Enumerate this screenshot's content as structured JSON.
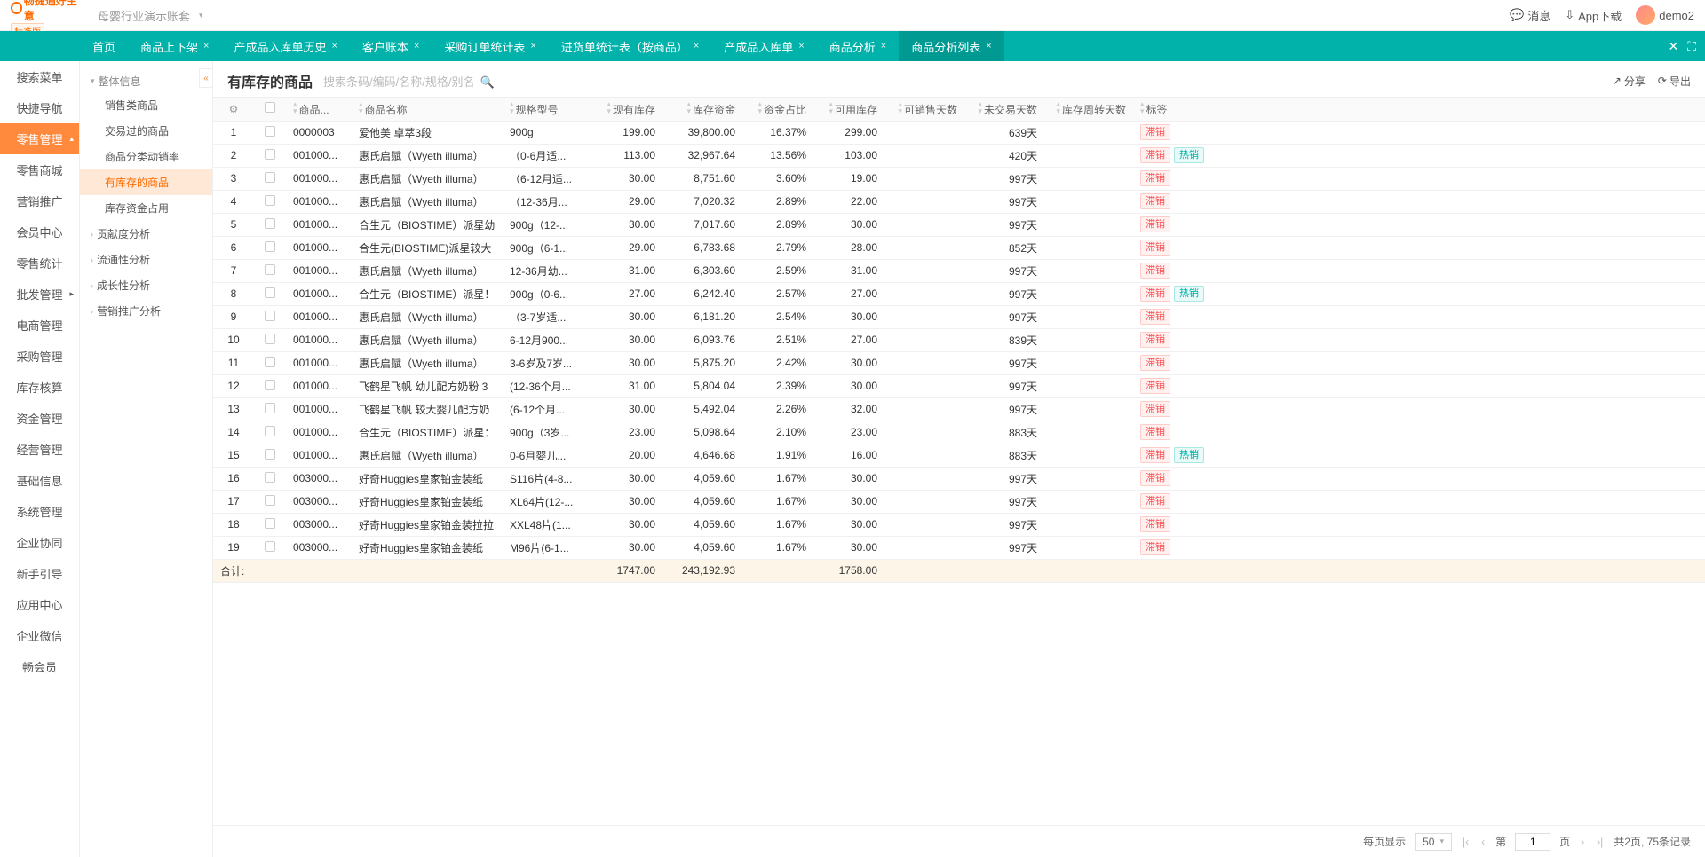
{
  "topbar": {
    "brand": "畅捷通好生意",
    "edition": "标准版",
    "account": "母婴行业演示账套",
    "msg": "消息",
    "app": "App下载",
    "user": "demo2"
  },
  "tabs": {
    "items": [
      {
        "label": "首页",
        "closable": false
      },
      {
        "label": "商品上下架",
        "closable": true
      },
      {
        "label": "产成品入库单历史",
        "closable": true
      },
      {
        "label": "客户账本",
        "closable": true
      },
      {
        "label": "采购订单统计表",
        "closable": true
      },
      {
        "label": "进货单统计表（按商品）",
        "closable": true
      },
      {
        "label": "产成品入库单",
        "closable": true
      },
      {
        "label": "商品分析",
        "closable": true
      },
      {
        "label": "商品分析列表",
        "closable": true,
        "active": true
      }
    ]
  },
  "leftnav": [
    {
      "label": "搜索菜单"
    },
    {
      "label": "快捷导航"
    },
    {
      "label": "零售管理",
      "active": true,
      "expand": true
    },
    {
      "label": "零售商城"
    },
    {
      "label": "营销推广"
    },
    {
      "label": "会员中心"
    },
    {
      "label": "零售统计"
    },
    {
      "label": "批发管理",
      "expand": true
    },
    {
      "label": "电商管理"
    },
    {
      "label": "采购管理"
    },
    {
      "label": "库存核算"
    },
    {
      "label": "资金管理"
    },
    {
      "label": "经营管理"
    },
    {
      "label": "基础信息"
    },
    {
      "label": "系统管理"
    },
    {
      "label": "企业协同"
    },
    {
      "label": "新手引导"
    },
    {
      "label": "应用中心"
    },
    {
      "label": "企业微信"
    },
    {
      "label": "畅会员"
    }
  ],
  "sidepanel": {
    "root": "整体信息",
    "items": [
      "销售类商品",
      "交易过的商品",
      "商品分类动销率",
      "有库存的商品",
      "库存资金占用"
    ],
    "selected": "有库存的商品",
    "groups": [
      "贡献度分析",
      "流通性分析",
      "成长性分析",
      "营销推广分析"
    ]
  },
  "page": {
    "title": "有库存的商品",
    "search_placeholder": "搜索条码/编码/名称/规格/别名",
    "share": "分享",
    "export": "导出"
  },
  "table": {
    "columns": [
      "",
      "",
      "商品...",
      "商品名称",
      "规格型号",
      "现有库存",
      "库存资金",
      "资金占比",
      "可用库存",
      "可销售天数",
      "未交易天数",
      "库存周转天数",
      "标签"
    ],
    "rows": [
      {
        "n": 1,
        "code": "0000003",
        "name": "爱他美 卓萃3段",
        "spec": "900g",
        "stock": "199.00",
        "fund": "39,800.00",
        "pct": "16.37%",
        "avail": "299.00",
        "sell": "",
        "idle": "639天",
        "turn": "",
        "tags": [
          "滞销"
        ]
      },
      {
        "n": 2,
        "code": "001000...",
        "name": "惠氏启赋（Wyeth illuma）",
        "spec": "（0-6月适...",
        "stock": "113.00",
        "fund": "32,967.64",
        "pct": "13.56%",
        "avail": "103.00",
        "sell": "",
        "idle": "420天",
        "turn": "",
        "tags": [
          "滞销",
          "热销"
        ]
      },
      {
        "n": 3,
        "code": "001000...",
        "name": "惠氏启赋（Wyeth illuma）",
        "spec": "（6-12月适...",
        "stock": "30.00",
        "fund": "8,751.60",
        "pct": "3.60%",
        "avail": "19.00",
        "sell": "",
        "idle": "997天",
        "turn": "",
        "tags": [
          "滞销"
        ]
      },
      {
        "n": 4,
        "code": "001000...",
        "name": "惠氏启赋（Wyeth illuma）",
        "spec": "（12-36月...",
        "stock": "29.00",
        "fund": "7,020.32",
        "pct": "2.89%",
        "avail": "22.00",
        "sell": "",
        "idle": "997天",
        "turn": "",
        "tags": [
          "滞销"
        ]
      },
      {
        "n": 5,
        "code": "001000...",
        "name": "合生元（BIOSTIME）派星幼",
        "spec": "900g（12-...",
        "stock": "30.00",
        "fund": "7,017.60",
        "pct": "2.89%",
        "avail": "30.00",
        "sell": "",
        "idle": "997天",
        "turn": "",
        "tags": [
          "滞销"
        ]
      },
      {
        "n": 6,
        "code": "001000...",
        "name": "合生元(BIOSTIME)派星较大",
        "spec": "900g（6-1...",
        "stock": "29.00",
        "fund": "6,783.68",
        "pct": "2.79%",
        "avail": "28.00",
        "sell": "",
        "idle": "852天",
        "turn": "",
        "tags": [
          "滞销"
        ]
      },
      {
        "n": 7,
        "code": "001000...",
        "name": "惠氏启赋（Wyeth illuma）",
        "spec": "12-36月幼...",
        "stock": "31.00",
        "fund": "6,303.60",
        "pct": "2.59%",
        "avail": "31.00",
        "sell": "",
        "idle": "997天",
        "turn": "",
        "tags": [
          "滞销"
        ]
      },
      {
        "n": 8,
        "code": "001000...",
        "name": "合生元（BIOSTIME）派星！",
        "spec": "900g（0-6...",
        "stock": "27.00",
        "fund": "6,242.40",
        "pct": "2.57%",
        "avail": "27.00",
        "sell": "",
        "idle": "997天",
        "turn": "",
        "tags": [
          "滞销",
          "热销"
        ]
      },
      {
        "n": 9,
        "code": "001000...",
        "name": "惠氏启赋（Wyeth illuma）",
        "spec": "（3-7岁适...",
        "stock": "30.00",
        "fund": "6,181.20",
        "pct": "2.54%",
        "avail": "30.00",
        "sell": "",
        "idle": "997天",
        "turn": "",
        "tags": [
          "滞销"
        ]
      },
      {
        "n": 10,
        "code": "001000...",
        "name": "惠氏启赋（Wyeth illuma）",
        "spec": "6-12月900...",
        "stock": "30.00",
        "fund": "6,093.76",
        "pct": "2.51%",
        "avail": "27.00",
        "sell": "",
        "idle": "839天",
        "turn": "",
        "tags": [
          "滞销"
        ]
      },
      {
        "n": 11,
        "code": "001000...",
        "name": "惠氏启赋（Wyeth illuma）",
        "spec": "3-6岁及7岁...",
        "stock": "30.00",
        "fund": "5,875.20",
        "pct": "2.42%",
        "avail": "30.00",
        "sell": "",
        "idle": "997天",
        "turn": "",
        "tags": [
          "滞销"
        ]
      },
      {
        "n": 12,
        "code": "001000...",
        "name": "飞鹤星飞帆 幼儿配方奶粉 3",
        "spec": "(12-36个月...",
        "stock": "31.00",
        "fund": "5,804.04",
        "pct": "2.39%",
        "avail": "30.00",
        "sell": "",
        "idle": "997天",
        "turn": "",
        "tags": [
          "滞销"
        ]
      },
      {
        "n": 13,
        "code": "001000...",
        "name": "飞鹤星飞帆 较大婴儿配方奶",
        "spec": "(6-12个月...",
        "stock": "30.00",
        "fund": "5,492.04",
        "pct": "2.26%",
        "avail": "32.00",
        "sell": "",
        "idle": "997天",
        "turn": "",
        "tags": [
          "滞销"
        ]
      },
      {
        "n": 14,
        "code": "001000...",
        "name": "合生元（BIOSTIME）派星：",
        "spec": "900g（3岁...",
        "stock": "23.00",
        "fund": "5,098.64",
        "pct": "2.10%",
        "avail": "23.00",
        "sell": "",
        "idle": "883天",
        "turn": "",
        "tags": [
          "滞销"
        ]
      },
      {
        "n": 15,
        "code": "001000...",
        "name": "惠氏启赋（Wyeth illuma）",
        "spec": "0-6月婴儿...",
        "stock": "20.00",
        "fund": "4,646.68",
        "pct": "1.91%",
        "avail": "16.00",
        "sell": "",
        "idle": "883天",
        "turn": "",
        "tags": [
          "滞销",
          "热销"
        ]
      },
      {
        "n": 16,
        "code": "003000...",
        "name": "好奇Huggies皇家铂金装纸",
        "spec": "S116片(4-8...",
        "stock": "30.00",
        "fund": "4,059.60",
        "pct": "1.67%",
        "avail": "30.00",
        "sell": "",
        "idle": "997天",
        "turn": "",
        "tags": [
          "滞销"
        ]
      },
      {
        "n": 17,
        "code": "003000...",
        "name": "好奇Huggies皇家铂金装纸",
        "spec": "XL64片(12-...",
        "stock": "30.00",
        "fund": "4,059.60",
        "pct": "1.67%",
        "avail": "30.00",
        "sell": "",
        "idle": "997天",
        "turn": "",
        "tags": [
          "滞销"
        ]
      },
      {
        "n": 18,
        "code": "003000...",
        "name": "好奇Huggies皇家铂金装拉拉",
        "spec": "XXL48片(1...",
        "stock": "30.00",
        "fund": "4,059.60",
        "pct": "1.67%",
        "avail": "30.00",
        "sell": "",
        "idle": "997天",
        "turn": "",
        "tags": [
          "滞销"
        ]
      },
      {
        "n": 19,
        "code": "003000...",
        "name": "好奇Huggies皇家铂金装纸",
        "spec": "M96片(6-1...",
        "stock": "30.00",
        "fund": "4,059.60",
        "pct": "1.67%",
        "avail": "30.00",
        "sell": "",
        "idle": "997天",
        "turn": "",
        "tags": [
          "滞销"
        ]
      }
    ],
    "totals": {
      "label": "合计:",
      "stock": "1747.00",
      "fund": "243,192.93",
      "avail": "1758.00"
    }
  },
  "pager": {
    "per_label": "每页显示",
    "per": "50",
    "page_label_pre": "第",
    "page": "1",
    "page_label_post": "页",
    "summary": "共2页, 75条记录"
  }
}
